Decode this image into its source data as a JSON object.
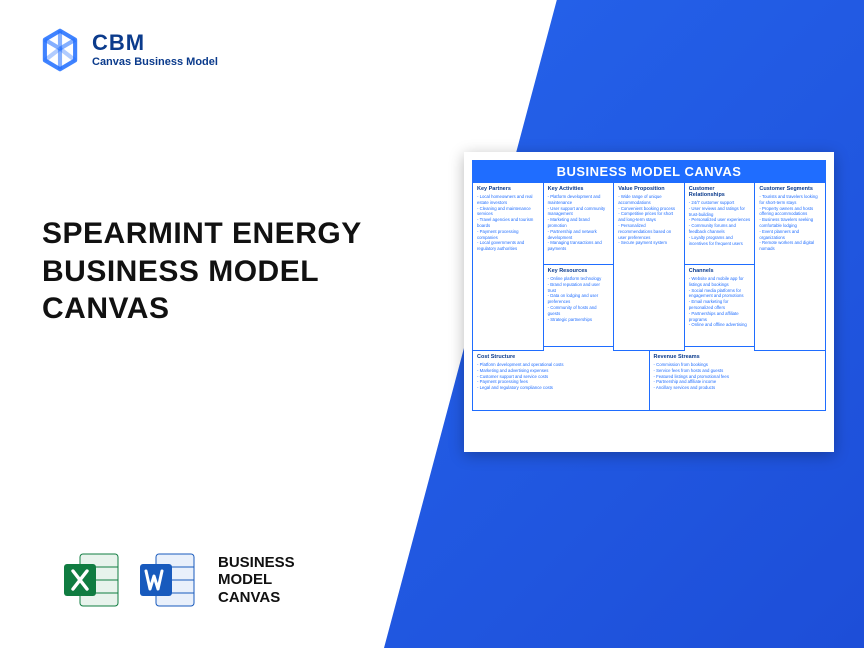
{
  "logo": {
    "abbr": "CBM",
    "full": "Canvas Business Model"
  },
  "headline": "SPEARMINT ENERGY BUSINESS MODEL CANVAS",
  "bmc_label_l1": "BUSINESS",
  "bmc_label_l2": "MODEL",
  "bmc_label_l3": "CANVAS",
  "canvas": {
    "title": "BUSINESS MODEL CANVAS",
    "key_partners": {
      "heading": "Key Partners",
      "items": [
        "Local homeowners and real estate investors",
        "Cleaning and maintenance services",
        "Travel agencies and tourism boards",
        "Payment processing companies",
        "Local governments and regulatory authorities"
      ]
    },
    "key_activities": {
      "heading": "Key Activities",
      "items": [
        "Platform development and maintenance",
        "User support and community management",
        "Marketing and brand promotion",
        "Partnership and network development",
        "Managing transactions and payments"
      ]
    },
    "key_resources": {
      "heading": "Key Resources",
      "items": [
        "Online platform technology",
        "Brand reputation and user trust",
        "Data on lodging and user preferences",
        "Community of hosts and guests",
        "Strategic partnerships"
      ]
    },
    "value_proposition": {
      "heading": "Value Proposition",
      "items": [
        "Wide range of unique accommodations",
        "Convenient booking process",
        "Competitive prices for short and long-term stays",
        "Personalized recommendations based on user preferences",
        "Secure payment system"
      ]
    },
    "customer_relationships": {
      "heading": "Customer Relationships",
      "items": [
        "24/7 customer support",
        "User reviews and ratings for trust-building",
        "Personalized user experiences",
        "Community forums and feedback channels",
        "Loyalty programs and incentives for frequent users"
      ]
    },
    "channels": {
      "heading": "Channels",
      "items": [
        "Website and mobile app for listings and bookings",
        "Social media platforms for engagement and promotions",
        "Email marketing for personalized offers",
        "Partnerships and affiliate programs",
        "Online and offline advertising"
      ]
    },
    "customer_segments": {
      "heading": "Customer Segments",
      "items": [
        "Tourists and travelers looking for short-term stays",
        "Property owners and hosts offering accommodations",
        "Business travelers seeking comfortable lodging",
        "Event planners and organizations",
        "Remote workers and digital nomads"
      ]
    },
    "cost_structure": {
      "heading": "Cost Structure",
      "items": [
        "Platform development and operational costs",
        "Marketing and advertising expenses",
        "Customer support and service costs",
        "Payment processing fees",
        "Legal and regulatory compliance costs"
      ]
    },
    "revenue_streams": {
      "heading": "Revenue Streams",
      "items": [
        "Commission from bookings",
        "Service fees from hosts and guests",
        "Featured listings and promotional fees",
        "Partnership and affiliate income",
        "Ancillary services and products"
      ]
    }
  },
  "colors": {
    "brand_blue": "#1f6dff",
    "dark_blue": "#0b3b8c",
    "bg_gradient_from": "#2563eb",
    "bg_gradient_to": "#1d4ed8",
    "excel_green": "#107c41",
    "word_blue": "#185abd"
  }
}
